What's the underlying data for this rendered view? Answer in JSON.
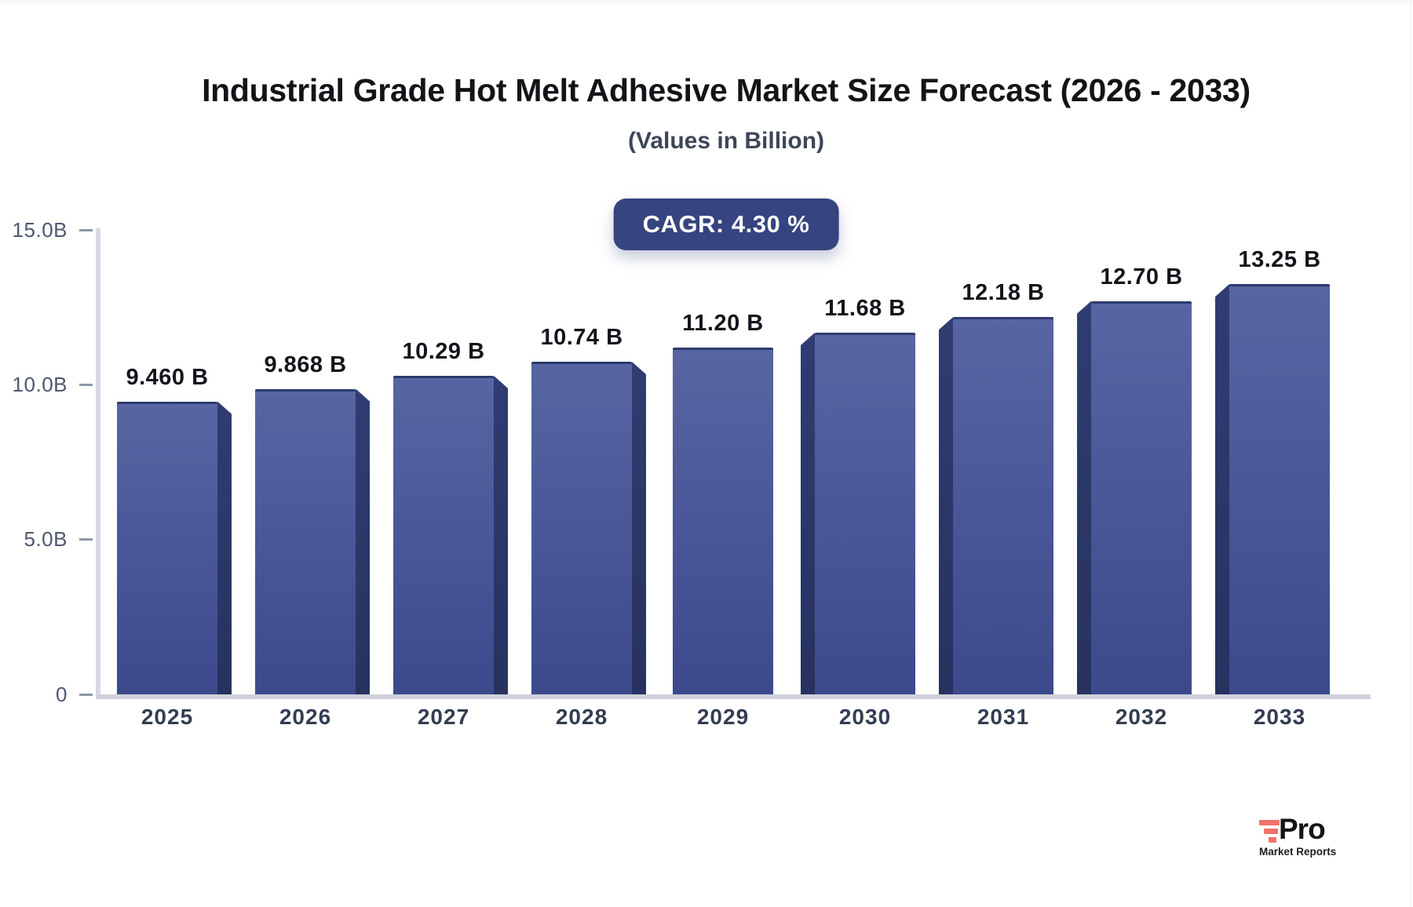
{
  "header": {
    "title": "Industrial Grade Hot Melt Adhesive Market Size Forecast (2026 - 2033)",
    "subtitle": "(Values in Billion)",
    "cagr_label": "CAGR: 4.30 %"
  },
  "chart_data": {
    "type": "bar",
    "title": "Industrial Grade Hot Melt Adhesive Market Size Forecast (2026 - 2033)",
    "subtitle": "(Values in Billion)",
    "cagr_text": "CAGR: 4.30 %",
    "cagr_percent": 4.3,
    "categories": [
      "2025",
      "2026",
      "2027",
      "2028",
      "2029",
      "2030",
      "2031",
      "2032",
      "2033"
    ],
    "values": [
      9.46,
      9.868,
      10.29,
      10.74,
      11.2,
      11.68,
      12.18,
      12.7,
      13.25
    ],
    "bar_labels": [
      "9.460 B",
      "9.868 B",
      "10.29 B",
      "10.74 B",
      "11.20 B",
      "11.68 B",
      "12.18 B",
      "12.70 B",
      "13.25 B"
    ],
    "xlabel": "",
    "ylabel": "",
    "ylim": [
      0,
      15
    ],
    "yticks": [
      {
        "label": "15.0B",
        "value": 15
      },
      {
        "label": "10.0B",
        "value": 10
      },
      {
        "label": "5.0B",
        "value": 5
      },
      {
        "label": "0",
        "value": 0
      }
    ],
    "grid": false,
    "legend": false,
    "unit": "Billion",
    "colors": {
      "bar_face_top": "#5765a2",
      "bar_face_bottom": "#3c4a8c",
      "bar_side": "#27325f",
      "badge_background": "#36447f",
      "badge_text": "#ffffff",
      "axis_line": "#d6d9e0",
      "tick_text": "#4d5770"
    }
  },
  "logo": {
    "brand": "Pro",
    "tagline": "Market Reports",
    "accent_color": "#f1736c"
  }
}
